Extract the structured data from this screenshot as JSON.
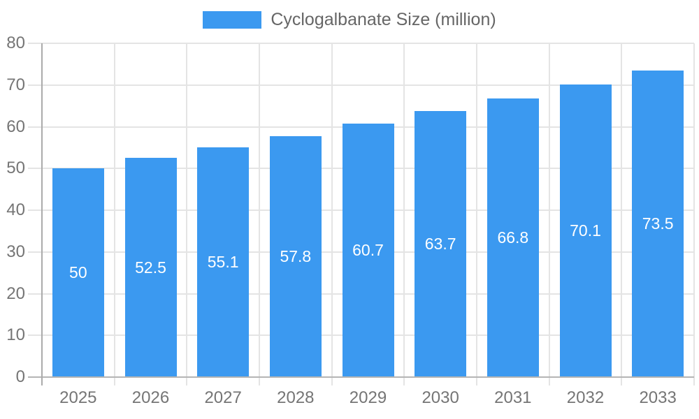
{
  "legend": {
    "label": "Cyclogalbanate Size (million)",
    "swatch_color": "#3b99f0"
  },
  "colors": {
    "bar": "#3b99f0",
    "gridline": "#e4e4e4",
    "axis_line": "#ababab",
    "zero_line": "#b5b5b5",
    "axis_text": "#757575",
    "legend_text": "#666666",
    "value_text": "#ffffff",
    "background": "#ffffff"
  },
  "chart_data": {
    "type": "bar",
    "title": "",
    "categories": [
      "2025",
      "2026",
      "2027",
      "2028",
      "2029",
      "2030",
      "2031",
      "2032",
      "2033"
    ],
    "series": [
      {
        "name": "Cyclogalbanate Size (million)",
        "values": [
          50,
          52.5,
          55.1,
          57.8,
          60.7,
          63.7,
          66.8,
          70.1,
          73.5
        ],
        "labels": [
          "50",
          "52.5",
          "55.1",
          "57.8",
          "60.7",
          "63.7",
          "66.8",
          "70.1",
          "73.5"
        ],
        "color": "#3b99f0"
      }
    ],
    "xlabel": "",
    "ylabel": "",
    "ylim": [
      0,
      80
    ],
    "yticks": [
      0,
      10,
      20,
      30,
      40,
      50,
      60,
      70,
      80
    ],
    "grid": true,
    "legend_position": "top",
    "value_labels_inside_bars": true
  }
}
